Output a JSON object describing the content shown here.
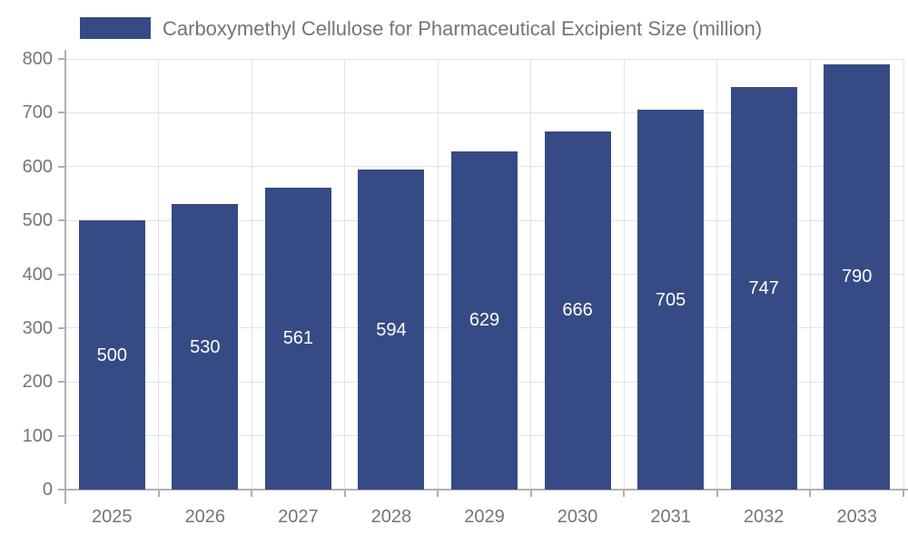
{
  "legend": {
    "label": "Carboxymethyl Cellulose for Pharmaceutical Excipient Size (million)"
  },
  "colors": {
    "bar": "#364a85",
    "grid": "#e3e3e6",
    "axis": "#b0b0b0",
    "tick_label": "#757575",
    "legend_label": "#757575",
    "value_label": "#ffffff",
    "background": "#ffffff"
  },
  "chart_data": {
    "type": "bar",
    "title": "Carboxymethyl Cellulose for Pharmaceutical Excipient Size (million)",
    "categories": [
      "2025",
      "2026",
      "2027",
      "2028",
      "2029",
      "2030",
      "2031",
      "2032",
      "2033"
    ],
    "values": [
      500,
      530,
      561,
      594,
      629,
      666,
      705,
      747,
      790
    ],
    "xlabel": "",
    "ylabel": "",
    "ylim": [
      0,
      800
    ],
    "yticks": [
      0,
      100,
      200,
      300,
      400,
      500,
      600,
      700,
      800
    ],
    "grid": true,
    "legend_position": "top-left",
    "value_label_position": "inside-center"
  }
}
